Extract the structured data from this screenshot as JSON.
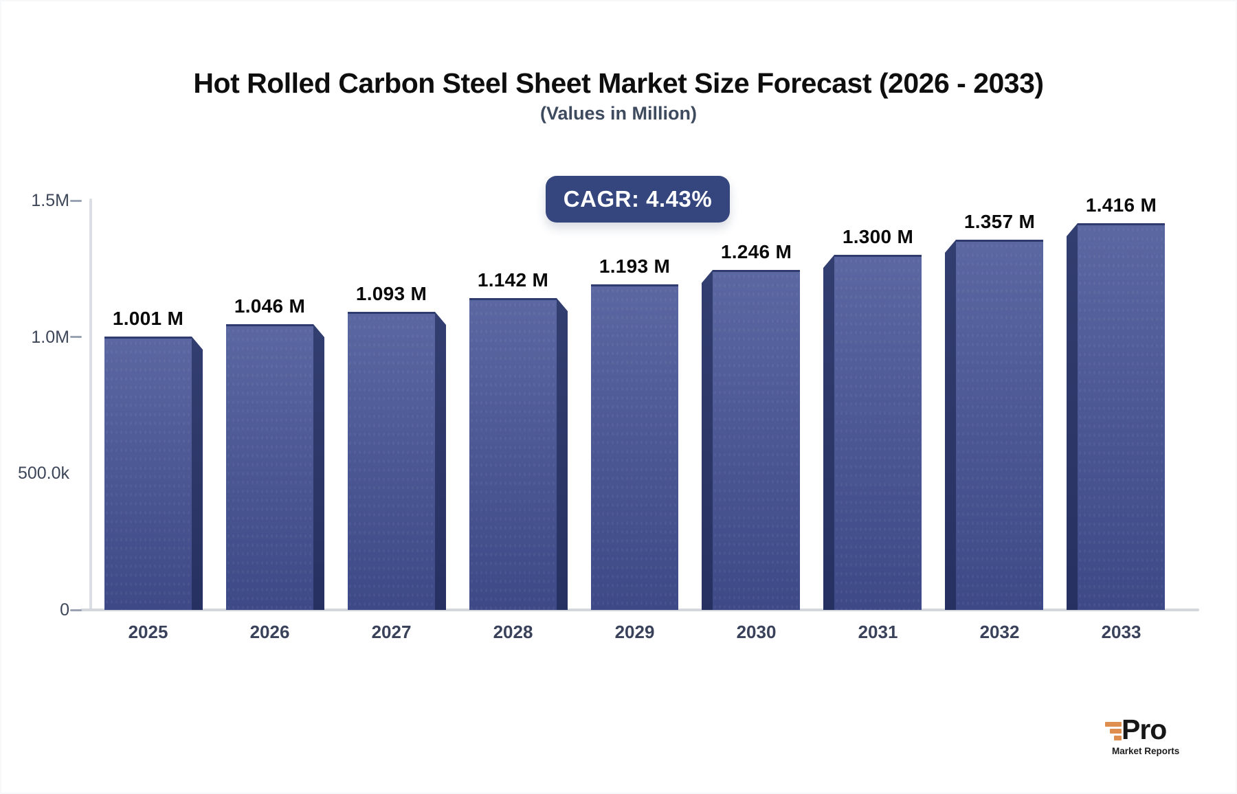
{
  "header": {
    "title": "Hot Rolled Carbon Steel Sheet Market Size Forecast (2026 - 2033)",
    "subtitle": "(Values in Million)"
  },
  "cagr_badge": {
    "label": "CAGR: 4.43%",
    "bg_color": "#35467f",
    "text_color": "#ffffff"
  },
  "chart_data": {
    "type": "bar",
    "title": "Hot Rolled Carbon Steel Sheet Market Size Forecast (2026 - 2033)",
    "subtitle": "(Values in Million)",
    "unit": "Million",
    "categories": [
      "2025",
      "2026",
      "2027",
      "2028",
      "2029",
      "2030",
      "2031",
      "2032",
      "2033"
    ],
    "values": [
      1.001,
      1.046,
      1.093,
      1.142,
      1.193,
      1.246,
      1.3,
      1.357,
      1.416
    ],
    "value_labels": [
      "1.001 M",
      "1.046 M",
      "1.093 M",
      "1.142 M",
      "1.193 M",
      "1.246 M",
      "1.300 M",
      "1.357 M",
      "1.416 M"
    ],
    "xlabel": "",
    "ylabel": "",
    "ylim": [
      0,
      1.5
    ],
    "yticks": [
      {
        "value": 0,
        "label": "0",
        "dash": true
      },
      {
        "value": 0.5,
        "label": "500.0k",
        "dash": false
      },
      {
        "value": 1.0,
        "label": "1.0M",
        "dash": true
      },
      {
        "value": 1.5,
        "label": "1.5M",
        "dash": true
      }
    ],
    "grid": false,
    "legend": "none",
    "bar_style": {
      "face_top_color": "#5b67a1",
      "face_bottom_color": "#3e4a87",
      "side_color": "#2c3768",
      "top_edge_color": "#2f3a6e",
      "perspective": "center-vanishing"
    }
  },
  "logo": {
    "name": "Pro",
    "tagline": "Market Reports",
    "accent_color": "#de8f4f"
  }
}
